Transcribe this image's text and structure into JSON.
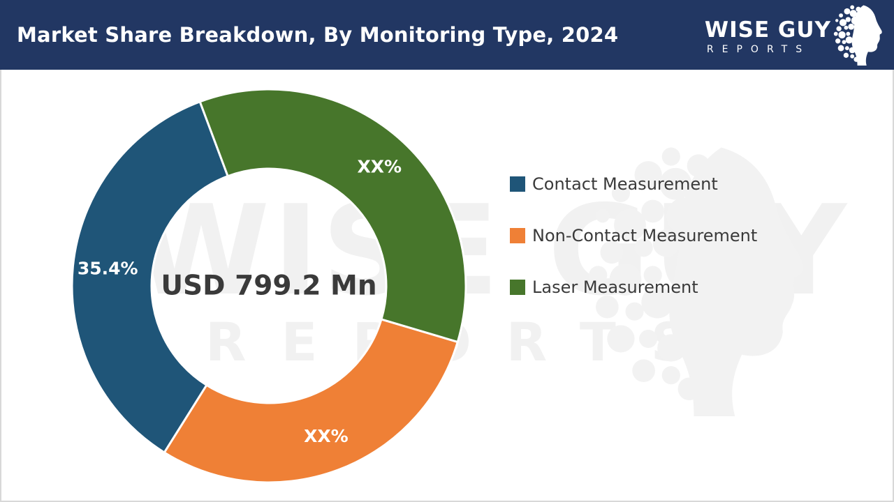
{
  "header": {
    "title": "Market Share Breakdown, By Monitoring Type, 2024",
    "logo": {
      "line1": "WISE GUY",
      "line2": "REPORTS"
    }
  },
  "watermark": {
    "line1": "WISE GUY",
    "line2": "REPORTS"
  },
  "chart_data": {
    "type": "pie",
    "subtype": "donut",
    "title": "Market Share Breakdown, By Monitoring Type, 2024",
    "center_label": "USD 799.2 Mn",
    "start_angle_deg": 110.5,
    "direction": "counterclockwise",
    "inner_radius_ratio": 0.595,
    "legend_position": "right",
    "series": [
      {
        "name": "Contact Measurement",
        "label": "35.4%",
        "value_pct": 35.4,
        "color": "#1F5578"
      },
      {
        "name": "Non-Contact Measurement",
        "label": "XX%",
        "value_pct": 29.3,
        "color": "#EF8036"
      },
      {
        "name": "Laser Measurement",
        "label": "XX%",
        "value_pct": 35.3,
        "color": "#47762B"
      }
    ],
    "colors": {
      "header_bg": "#223763",
      "center_text": "#3a3a3a",
      "watermark": "#f1f1f1",
      "separator": "#ffffff"
    }
  }
}
